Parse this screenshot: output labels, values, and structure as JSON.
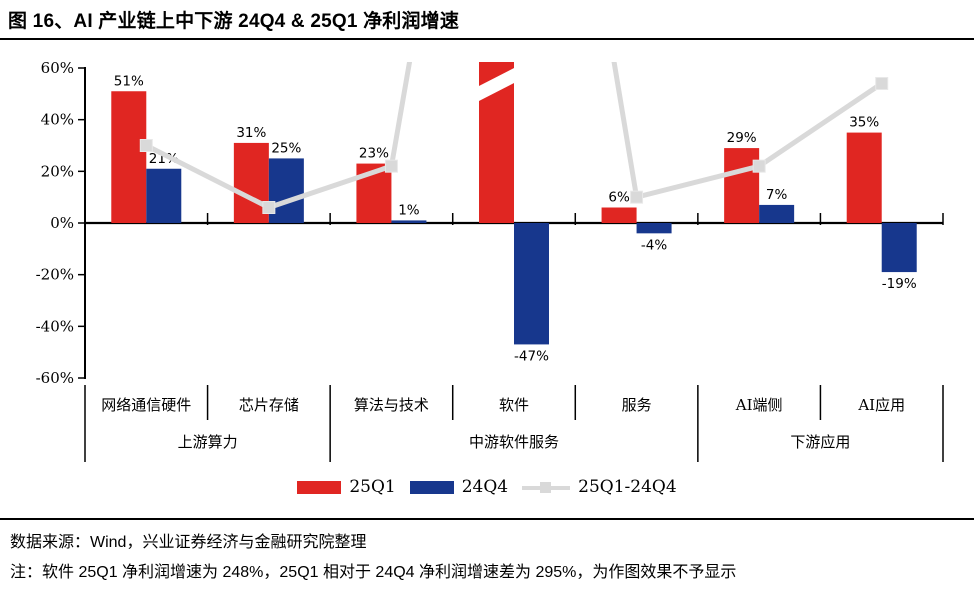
{
  "title": "图 16、AI 产业链上中下游 24Q4 & 25Q1 净利润增速",
  "colors": {
    "bar_25q1": "#e02622",
    "bar_24q4": "#17378d",
    "line_diff": "#d9d9d9",
    "axis": "#000000"
  },
  "legend": {
    "items": [
      {
        "label": "25Q1",
        "color": "#e02622",
        "type": "bar"
      },
      {
        "label": "24Q4",
        "color": "#17378d",
        "type": "bar"
      },
      {
        "label": "25Q1-24Q4",
        "color": "#d9d9d9",
        "type": "line"
      }
    ]
  },
  "chart_data": {
    "type": "bar",
    "title": "AI 产业链上中下游 24Q4 & 25Q1 净利润增速",
    "categories": [
      "网络通信硬件",
      "芯片存储",
      "算法与技术",
      "软件",
      "服务",
      "AI端侧",
      "AI应用"
    ],
    "groups": [
      {
        "label": "上游算力",
        "span": [
          0,
          1
        ]
      },
      {
        "label": "中游软件服务",
        "span": [
          2,
          4
        ]
      },
      {
        "label": "下游应用",
        "span": [
          5,
          6
        ]
      }
    ],
    "series": [
      {
        "name": "25Q1",
        "type": "bar",
        "color": "#e02622",
        "values": [
          51,
          31,
          23,
          248,
          6,
          29,
          35
        ],
        "labels": [
          "51%",
          "31%",
          "23%",
          null,
          "6%",
          "29%",
          "35%"
        ]
      },
      {
        "name": "24Q4",
        "type": "bar",
        "color": "#17378d",
        "values": [
          21,
          25,
          1,
          -47,
          -4,
          7,
          -19
        ],
        "labels": [
          "21%",
          "25%",
          "1%",
          "-47%",
          "-4%",
          "7%",
          "-19%"
        ]
      },
      {
        "name": "25Q1-24Q4",
        "type": "line",
        "color": "#d9d9d9",
        "values": [
          30,
          6,
          22,
          295,
          10,
          22,
          54
        ],
        "labels": [
          null,
          null,
          null,
          null,
          null,
          null,
          null
        ]
      }
    ],
    "ylim": [
      -60,
      60
    ],
    "yticks": [
      {
        "label": "60%",
        "value": 60
      },
      {
        "label": "40%",
        "value": 40
      },
      {
        "label": "20%",
        "value": 20
      },
      {
        "label": "0%",
        "value": 0
      },
      {
        "label": "-20%",
        "value": -20
      },
      {
        "label": "-40%",
        "value": -40
      },
      {
        "label": "-60%",
        "value": -60
      }
    ],
    "grid": false,
    "legend_position": "bottom"
  },
  "footer": {
    "source": "数据来源：Wind，兴业证券经济与金融研究院整理",
    "note": "注：软件 25Q1 净利润增速为 248%，25Q1 相对于 24Q4 净利润增速差为 295%，为作图效果不予显示"
  }
}
